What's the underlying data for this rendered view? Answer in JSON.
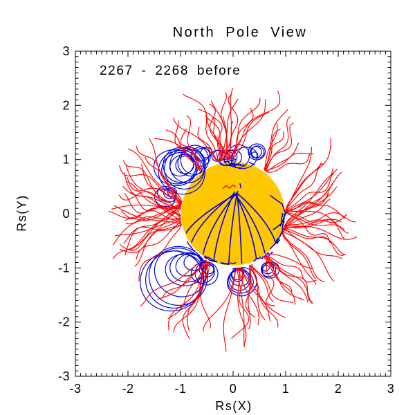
{
  "chart_data": {
    "type": "line",
    "subtype": "solar-magnetic-field-line-map",
    "title": "North Pole View",
    "annotation": "2267 - 2268 before",
    "xlabel": "Rs(X)",
    "ylabel": "Rs(Y)",
    "xlim": [
      -3,
      3
    ],
    "ylim": [
      -3,
      3
    ],
    "xticks": {
      "values": [
        -3,
        -2,
        -1,
        0,
        1,
        2,
        3
      ],
      "labels": [
        "-3",
        "-2",
        "-1",
        "0",
        "1",
        "2",
        "3"
      ]
    },
    "yticks": {
      "values": [
        -3,
        -2,
        -1,
        0,
        1,
        2,
        3
      ],
      "labels": [
        "-3",
        "-2",
        "-1",
        "0",
        "1",
        "2",
        "3"
      ]
    },
    "minor_tick_step": 0.1,
    "grid": false,
    "frame": true,
    "legend": null,
    "seed": 13,
    "colors": {
      "open_field": "#ff0000",
      "closed_field": "#0000dd",
      "sun": "#ffc800",
      "axis": "#000000",
      "text": "#000000",
      "background": "#ffffff"
    },
    "sun": {
      "center": [
        0,
        0
      ],
      "radius_rs": 1.0
    },
    "open_field_fans": [
      {
        "name": "left-upper",
        "foot": 171,
        "foot_spread": 10,
        "fan": [
          138,
          208
        ],
        "count": 18,
        "rmax": [
          1.6,
          2.45
        ]
      },
      {
        "name": "left-lower",
        "foot": 187,
        "foot_spread": 10,
        "fan": [
          150,
          214
        ],
        "count": 14,
        "rmax": [
          1.6,
          2.4
        ]
      },
      {
        "name": "right-a",
        "foot": -17,
        "foot_spread": 8,
        "fan": [
          -44,
          28
        ],
        "count": 16,
        "rmax": [
          1.5,
          2.4
        ]
      },
      {
        "name": "right-b",
        "foot": 3,
        "foot_spread": 8,
        "fan": [
          -18,
          44
        ],
        "count": 13,
        "rmax": [
          1.5,
          2.35
        ]
      },
      {
        "name": "top-a",
        "foot": 94,
        "foot_spread": 8,
        "fan": [
          64,
          112
        ],
        "count": 12,
        "rmax": [
          1.5,
          2.55
        ]
      },
      {
        "name": "top-b",
        "foot": 104,
        "foot_spread": 6,
        "fan": [
          84,
          122
        ],
        "count": 8,
        "rmax": [
          1.4,
          2.2
        ]
      },
      {
        "name": "upper-right",
        "foot": 53,
        "foot_spread": 6,
        "fan": [
          36,
          70
        ],
        "count": 9,
        "rmax": [
          1.4,
          2.25
        ]
      },
      {
        "name": "bottom-a",
        "foot": 277,
        "foot_spread": 8,
        "fan": [
          258,
          296
        ],
        "count": 8,
        "rmax": [
          1.6,
          2.55
        ]
      },
      {
        "name": "bottom-b",
        "foot": 289,
        "foot_spread": 6,
        "fan": [
          272,
          304
        ],
        "count": 6,
        "rmax": [
          1.5,
          2.3
        ]
      },
      {
        "name": "down-left",
        "foot": 242,
        "foot_spread": 6,
        "fan": [
          222,
          258
        ],
        "count": 9,
        "rmax": [
          1.7,
          2.5
        ]
      },
      {
        "name": "down-right",
        "foot": 309,
        "foot_spread": 7,
        "fan": [
          294,
          330
        ],
        "count": 9,
        "rmax": [
          1.5,
          2.3
        ]
      },
      {
        "name": "upper-left-diag",
        "foot": 127,
        "foot_spread": 5,
        "fan": [
          116,
          138
        ],
        "count": 5,
        "rmax": [
          1.5,
          2.05
        ]
      }
    ],
    "closed_field_arcades": [
      {
        "name": "upper-left-chain",
        "c": [
          -0.5,
          1.14
        ],
        "step": [
          -0.07,
          -0.052
        ],
        "n": 8,
        "r0": 9,
        "dr": 3.1
      },
      {
        "name": "upper-left-outer",
        "c": [
          -0.92,
          0.92
        ],
        "step": [
          -0.045,
          -0.02
        ],
        "n": 5,
        "r0": 14,
        "dr": 4.5
      },
      {
        "name": "top-limb-chain",
        "c": [
          -0.32,
          1.06
        ],
        "step": [
          0.085,
          -0.004
        ],
        "n": 7,
        "r0": 7,
        "dr": 1.8
      },
      {
        "name": "upper-right-small",
        "c": [
          0.4,
          1.1
        ],
        "step": [
          0.02,
          0.02
        ],
        "n": 4,
        "r0": 5,
        "dr": 2.6
      },
      {
        "name": "left-mid",
        "c": [
          -1.17,
          0.42
        ],
        "step": [
          -0.05,
          -0.04
        ],
        "n": 4,
        "r0": 7,
        "dr": 3.0
      },
      {
        "name": "bottom-left-big",
        "c": [
          -0.78,
          -0.88
        ],
        "step": [
          -0.055,
          -0.055
        ],
        "n": 8,
        "r0": 13,
        "dr": 5.2
      },
      {
        "name": "bottom-left-inner",
        "c": [
          -0.45,
          -1.02
        ],
        "step": [
          -0.04,
          -0.03
        ],
        "n": 4,
        "r0": 8,
        "dr": 3.5
      },
      {
        "name": "bottom-chain",
        "c": [
          0.1,
          -1.1
        ],
        "step": [
          0.01,
          -0.035
        ],
        "n": 6,
        "r0": 7,
        "dr": 3.2
      },
      {
        "name": "bottom-right-small",
        "c": [
          0.6,
          -1.0
        ],
        "step": [
          0.04,
          -0.02
        ],
        "n": 4,
        "r0": 5,
        "dr": 2.8
      }
    ],
    "disk_field_lines": {
      "apex": [
        0.06,
        0.4
      ],
      "count": 9,
      "end_angle_range": [
        202,
        327
      ],
      "end_radius": 0.98
    },
    "limb_scribbles": [
      {
        "a": [
          -112,
          -12
        ],
        "n": 14
      },
      {
        "a": [
          -150,
          -108
        ],
        "n": 5
      },
      {
        "a": [
          55,
          100
        ],
        "n": 5
      }
    ],
    "extra_marks": {
      "red_center_squiggle": [
        [
          -0.2,
          0.46
        ],
        [
          -0.13,
          0.52
        ],
        [
          -0.07,
          0.47
        ],
        [
          0.0,
          0.53
        ],
        [
          0.05,
          0.49
        ]
      ],
      "blue_center_dash": [
        [
          0.13,
          0.56
        ],
        [
          0.15,
          0.47
        ]
      ],
      "blue_inner_limb_arc": [
        [
          0.7,
          0.34
        ],
        [
          0.93,
          0.18
        ],
        [
          1.0,
          0.0
        ],
        [
          0.92,
          -0.18
        ],
        [
          0.76,
          -0.3
        ]
      ]
    }
  }
}
